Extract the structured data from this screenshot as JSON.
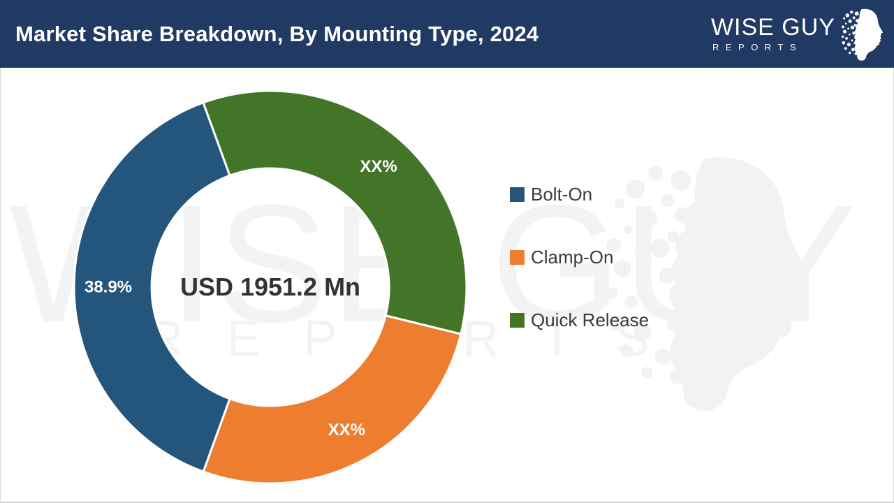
{
  "header": {
    "title": "Market Share Breakdown, By Mounting Type, 2024",
    "logo": {
      "line1": "WISE GUY",
      "line2": "REPORTS"
    }
  },
  "watermark": {
    "line1": "WISE GUY",
    "line2": "REPORTS"
  },
  "chart_data": {
    "type": "pie",
    "subtype": "donut",
    "title": "Market Share Breakdown, By Mounting Type, 2024",
    "center_label": "USD 1951.2 Mn",
    "start_angle_deg": -20,
    "direction": "clockwise",
    "inner_radius_ratio": 0.605,
    "legend_position": "right",
    "slices": [
      {
        "name": "Quick Release",
        "label": "XX%",
        "value_pct": 34.4,
        "color": "#427527"
      },
      {
        "name": "Clamp-On",
        "label": "XX%",
        "value_pct": 26.7,
        "color": "#ee7d30"
      },
      {
        "name": "Bolt-On",
        "label": "38.9%",
        "value_pct": 38.9,
        "color": "#24567d"
      }
    ]
  },
  "legend": {
    "items": [
      {
        "label": "Bolt-On",
        "color": "#24567d"
      },
      {
        "label": "Clamp-On",
        "color": "#ee7d30"
      },
      {
        "label": "Quick Release",
        "color": "#427527"
      }
    ]
  },
  "colors": {
    "header_bg": "#213a64",
    "center_text": "#333333",
    "slice_label_text": "#ffffff"
  }
}
